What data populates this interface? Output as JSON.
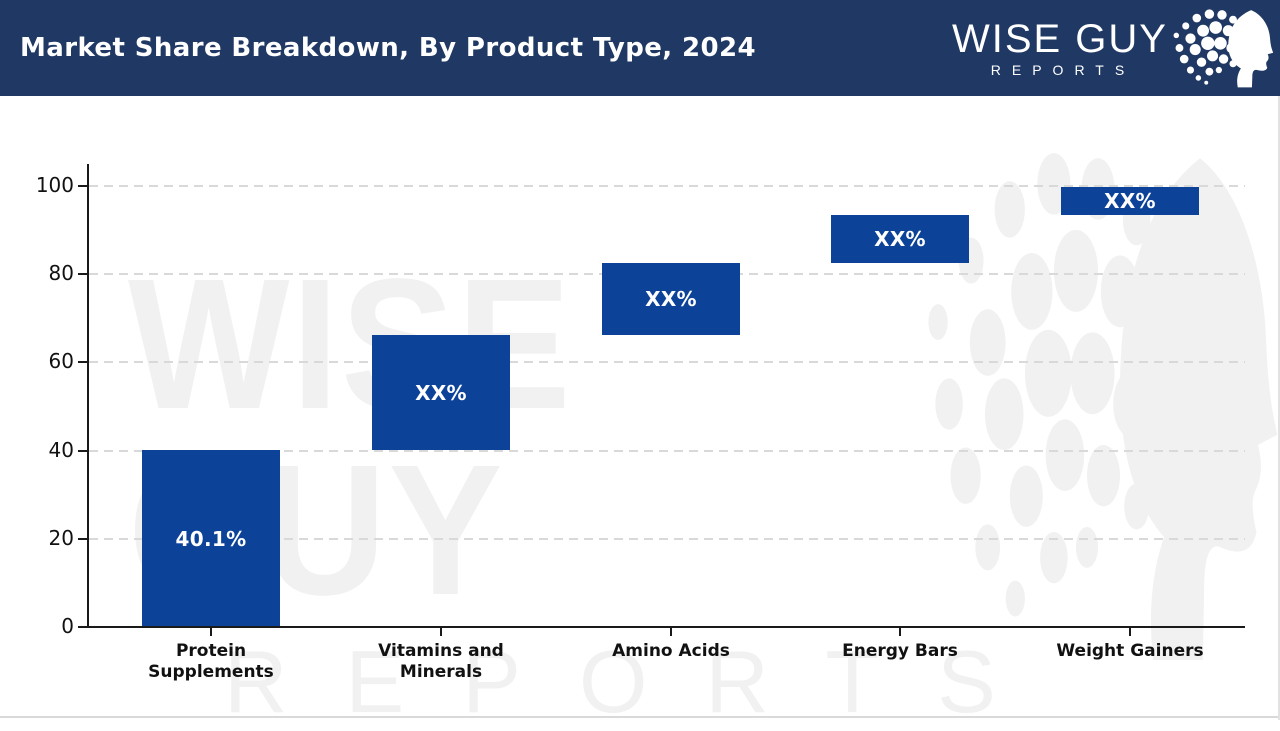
{
  "header": {
    "title": "Market Share Breakdown, By Product Type, 2024",
    "bg_color": "#1F3864",
    "logo": {
      "line1": "WISE GUY",
      "line2": "REPORTS"
    }
  },
  "watermark": {
    "line1": "WISE GUY",
    "line2": "REPORTS"
  },
  "chart_data": {
    "type": "bar",
    "subtype": "waterfall",
    "title": "Market Share Breakdown, By Product Type, 2024",
    "xlabel": "",
    "ylabel": "",
    "categories": [
      "Protein Supplements",
      "Vitamins and Minerals",
      "Amino Acids",
      "Energy Bars",
      "Weight Gainers"
    ],
    "category_lines": [
      [
        "Protein",
        "Supplements"
      ],
      [
        "Vitamins and",
        "Minerals"
      ],
      [
        "Amino Acids"
      ],
      [
        "Energy Bars"
      ],
      [
        "Weight Gainers"
      ]
    ],
    "segments": [
      {
        "category": "Protein Supplements",
        "start": 0,
        "end": 40.1,
        "label": "40.1%"
      },
      {
        "category": "Vitamins and Minerals",
        "start": 40.1,
        "end": 66.1,
        "label": "XX%"
      },
      {
        "category": "Amino Acids",
        "start": 66.1,
        "end": 82.6,
        "label": "XX%"
      },
      {
        "category": "Energy Bars",
        "start": 82.6,
        "end": 93.4,
        "label": "XX%"
      },
      {
        "category": "Weight Gainers",
        "start": 93.4,
        "end": 99.8,
        "label": "XX%"
      }
    ],
    "yticks": [
      0,
      20,
      40,
      60,
      80,
      100
    ],
    "ylim": [
      0,
      105
    ],
    "grid": "horizontal-dashed",
    "legend": "none",
    "bar_color": "#0D4299",
    "bar_label_color": "#FFFFFF",
    "grid_color": "#D9D9D9",
    "axis_color": "#1A1A1A"
  }
}
